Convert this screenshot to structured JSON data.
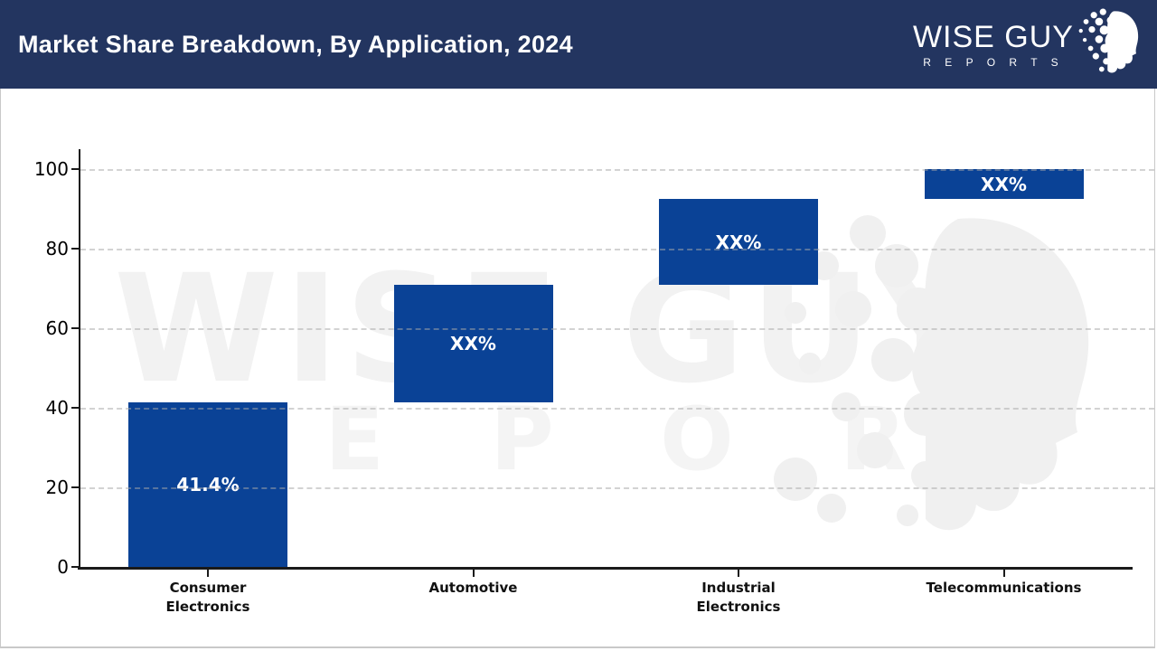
{
  "header": {
    "title": "Market Share Breakdown, By Application, 2024",
    "logo": {
      "name": "WISE GUY",
      "sub": "R E P O R T S"
    }
  },
  "watermark": {
    "line1": "WISE GUY",
    "line2": "R E P O R T S"
  },
  "colors": {
    "header_bg": "#233560",
    "bar": "#0a4296",
    "axis": "#1a1a1a",
    "grid_dash": "#a8a8a8",
    "watermark": "#f2f2f2",
    "frame_border": "#c9c9c9",
    "bar_label_text": "#ffffff"
  },
  "chart_data": {
    "type": "bar",
    "subtype": "waterfall",
    "title": "Market Share Breakdown, By Application, 2024",
    "categories": [
      "Consumer Electronics",
      "Automotive",
      "Industrial Electronics",
      "Telecommunications"
    ],
    "category_lines": [
      [
        "Consumer",
        "Electronics"
      ],
      [
        "Automotive"
      ],
      [
        "Industrial",
        "Electronics"
      ],
      [
        "Telecommunications"
      ]
    ],
    "bars": [
      {
        "category": "Consumer Electronics",
        "start": 0,
        "end": 41.4,
        "label": "41.4%"
      },
      {
        "category": "Automotive",
        "start": 41.4,
        "end": 71.0,
        "label": "XX%"
      },
      {
        "category": "Industrial Electronics",
        "start": 71.0,
        "end": 92.4,
        "label": "XX%"
      },
      {
        "category": "Telecommunications",
        "start": 92.4,
        "end": 100.0,
        "label": "XX%"
      }
    ],
    "ylim": [
      0,
      100
    ],
    "yticks": [
      0,
      20,
      40,
      60,
      80,
      100
    ],
    "xlabel": "",
    "ylabel": "",
    "grid": "horizontal-dashed",
    "legend": "none"
  }
}
